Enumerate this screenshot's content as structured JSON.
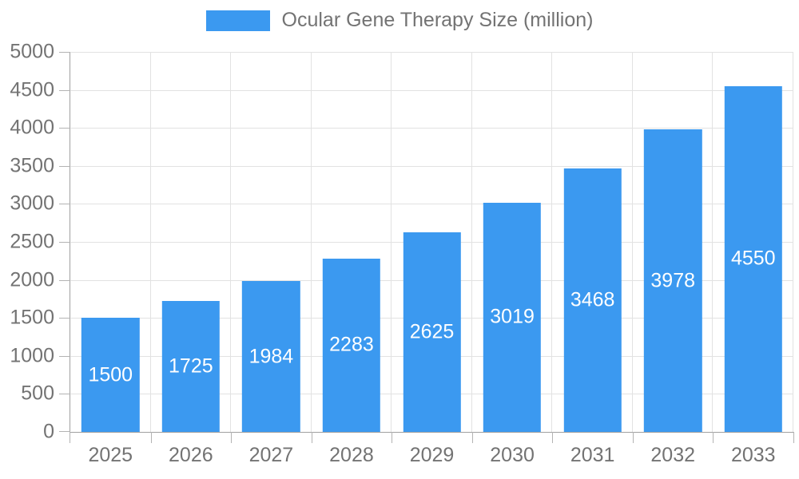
{
  "legend": {
    "label": "Ocular Gene Therapy Size (million)"
  },
  "chart_data": {
    "type": "bar",
    "title": "Ocular Gene Therapy Size (million)",
    "categories": [
      "2025",
      "2026",
      "2027",
      "2028",
      "2029",
      "2030",
      "2031",
      "2032",
      "2033"
    ],
    "values": [
      1500,
      1725,
      1984,
      2283,
      2625,
      3019,
      3468,
      3978,
      4550
    ],
    "xlabel": "",
    "ylabel": "",
    "ylim": [
      0,
      5000
    ],
    "ytick_step": 500,
    "ytick_labels": [
      "0",
      "500",
      "1000",
      "1500",
      "2000",
      "2500",
      "3000",
      "3500",
      "4000",
      "4500",
      "5000"
    ],
    "grid": "on",
    "legend_position": "top",
    "value_labels": "inside-center"
  },
  "colors": {
    "bar": "#3b99f0",
    "value_label": "#ffffff",
    "grid": "#e2e2e2",
    "axis": "#a0a0a0",
    "tick": "#b3b3b3",
    "text": "#737373"
  }
}
